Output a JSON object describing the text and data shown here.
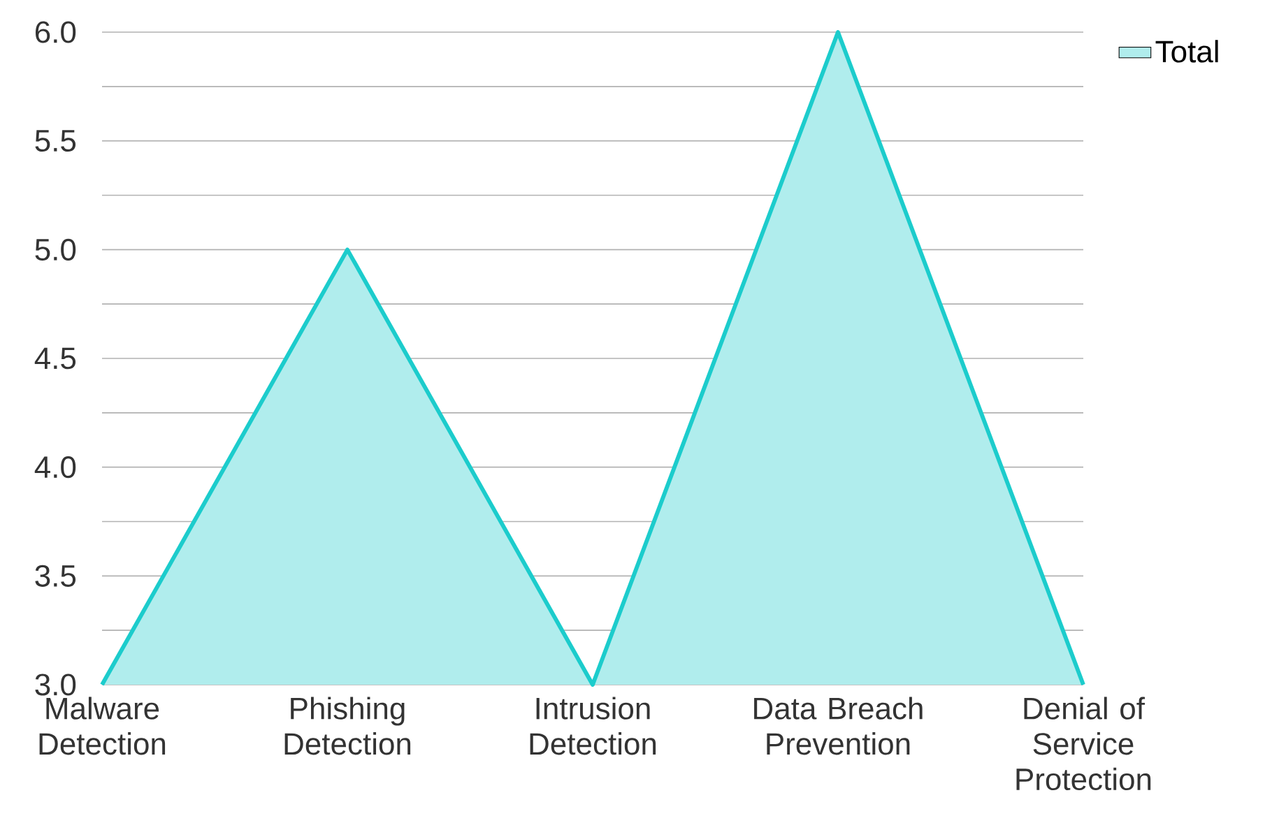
{
  "chart_data": {
    "type": "area",
    "categories": [
      "Malware Detection",
      "Phishing Detection",
      "Intrusion Detection",
      "Data Breach Prevention",
      "Denial of Service Protection"
    ],
    "series": [
      {
        "name": "Total",
        "color": "#1ccccc",
        "values": [
          3,
          5,
          3,
          6,
          3
        ]
      }
    ],
    "ylim": [
      3,
      6
    ],
    "yticks": [
      {
        "value": 3,
        "label": "3.0"
      },
      {
        "value": 3.25,
        "label": null
      },
      {
        "value": 3.5,
        "label": "3.5"
      },
      {
        "value": 3.75,
        "label": null
      },
      {
        "value": 4,
        "label": "4.0"
      },
      {
        "value": 4.25,
        "label": null
      },
      {
        "value": 4.5,
        "label": "4.5"
      },
      {
        "value": 4.75,
        "label": null
      },
      {
        "value": 5,
        "label": "5.0"
      },
      {
        "value": 5.25,
        "label": null
      },
      {
        "value": 5.5,
        "label": "5.5"
      },
      {
        "value": 5.75,
        "label": null
      },
      {
        "value": 6,
        "label": "6.0"
      }
    ],
    "grid": "y",
    "legend": "top right"
  }
}
